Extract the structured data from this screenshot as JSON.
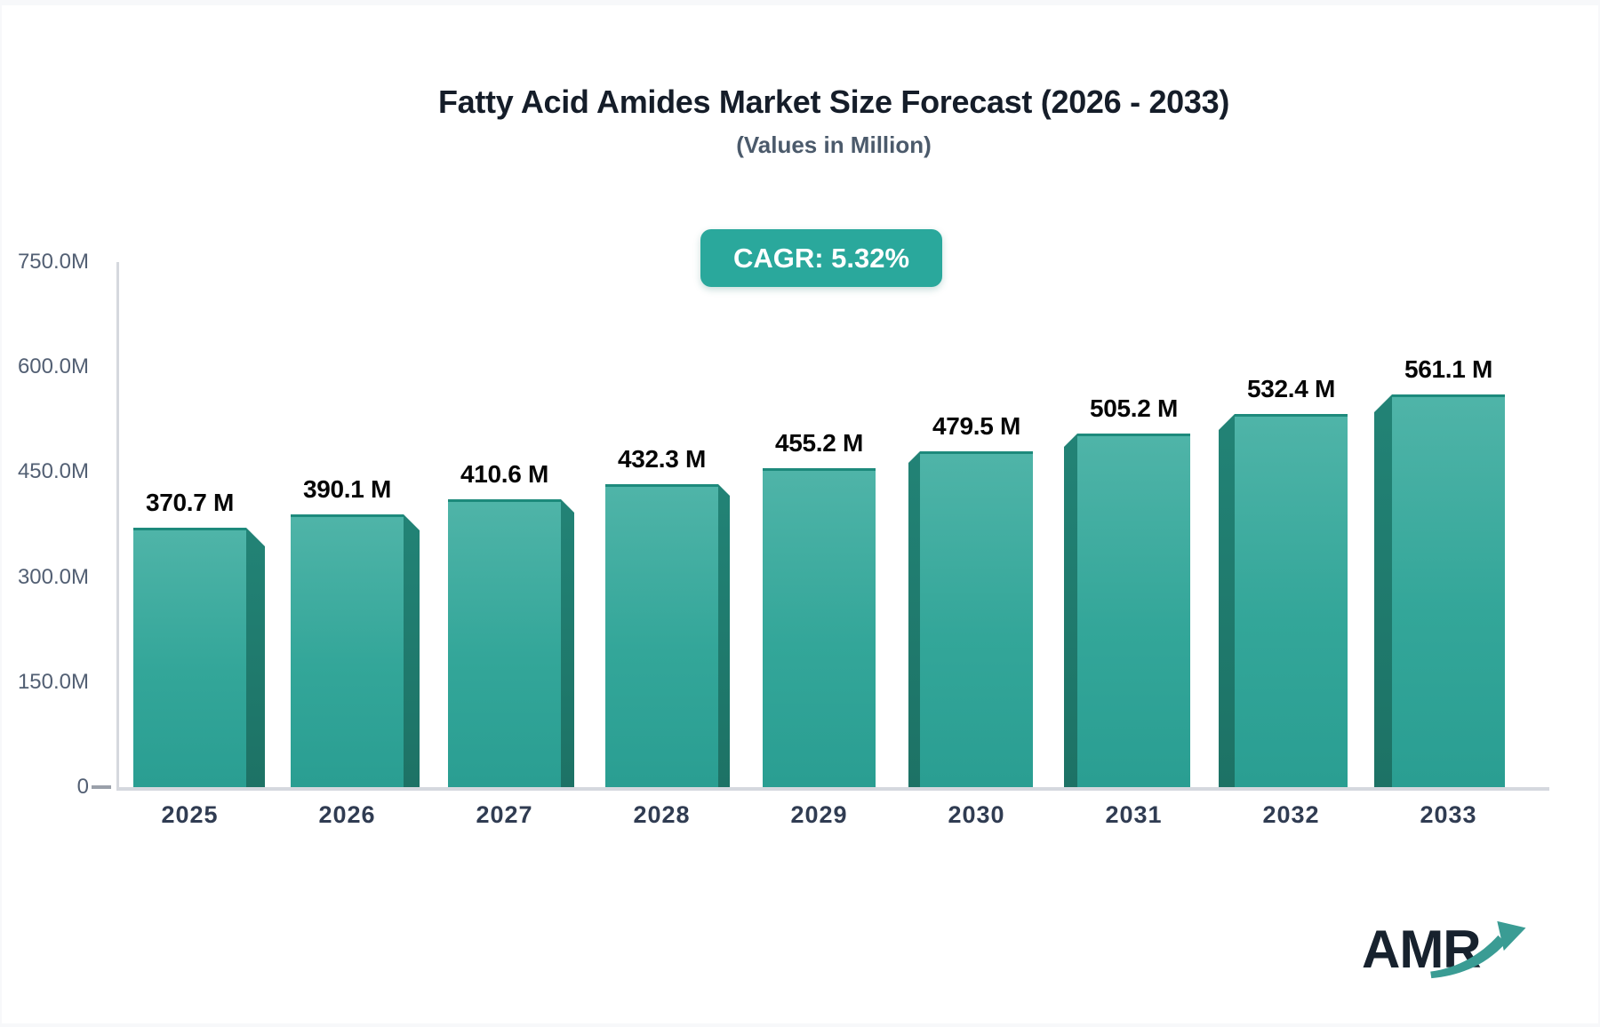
{
  "page": {
    "background": "#f7f8fa",
    "card_background": "#ffffff"
  },
  "header": {
    "title": "Fatty Acid Amides Market Size Forecast (2026 - 2033)",
    "subtitle": "(Values in Million)",
    "cagr_badge": "CAGR: 5.32%"
  },
  "chart_data": {
    "type": "bar",
    "title": "Fatty Acid Amides Market Size Forecast (2026 - 2033)",
    "subtitle": "(Values in Million)",
    "cagr_percent": 5.32,
    "categories": [
      "2025",
      "2026",
      "2027",
      "2028",
      "2029",
      "2030",
      "2031",
      "2032",
      "2033"
    ],
    "values": [
      370.7,
      390.1,
      410.6,
      432.3,
      455.2,
      479.5,
      505.2,
      532.4,
      561.1
    ],
    "value_labels": [
      "370.7 M",
      "390.1 M",
      "410.6 M",
      "432.3 M",
      "455.2 M",
      "479.5 M",
      "505.2 M",
      "532.4 M",
      "561.1 M"
    ],
    "unit": "Million",
    "xlabel": "",
    "ylabel": "",
    "ylim": [
      0,
      750
    ],
    "ytick_values": [
      0,
      150,
      300,
      450,
      600,
      750
    ],
    "ytick_labels": [
      "0",
      "150.0M",
      "300.0M",
      "450.0M",
      "600.0M",
      "750.0M"
    ],
    "grid": false,
    "legend": false,
    "bar_style": "3d-beveled",
    "bar_color": "#35a99c",
    "bar_side_color": "#1f7e71"
  },
  "logo": {
    "text": "AMR",
    "icon": "growth-arrow-icon",
    "text_color": "#17222e",
    "arrow_color": "#3a9c94"
  },
  "colors": {
    "accent_teal": "#2aa89c",
    "title_text": "#151d29",
    "subtitle_text": "#4b5a6b",
    "axis_line": "#d5d8de",
    "y_label_text": "#525f73",
    "x_label_text": "#303c52",
    "value_label_text": "#060606"
  }
}
